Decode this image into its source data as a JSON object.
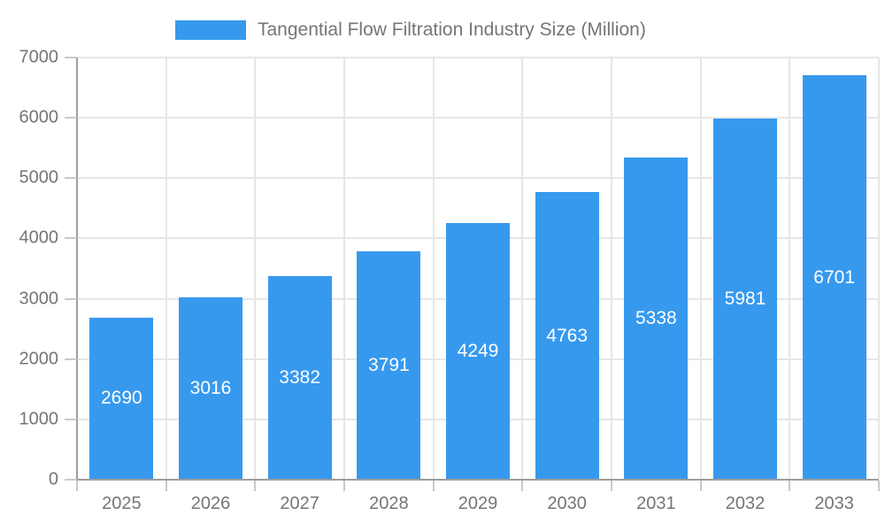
{
  "legend": {
    "label": "Tangential Flow Filtration Industry Size (Million)"
  },
  "chart_data": {
    "type": "bar",
    "title": "Tangential Flow Filtration Industry Size (Million)",
    "categories": [
      "2025",
      "2026",
      "2027",
      "2028",
      "2029",
      "2030",
      "2031",
      "2032",
      "2033"
    ],
    "series": [
      {
        "name": "Tangential Flow Filtration Industry Size (Million)",
        "values": [
          2690,
          3016,
          3382,
          3791,
          4249,
          4763,
          5338,
          5981,
          6701
        ]
      }
    ],
    "value_labels_shown": true,
    "xlabel": "",
    "ylabel": "",
    "ylim": [
      0,
      7000
    ],
    "ytick_step": 1000,
    "yticks": [
      "0",
      "1000",
      "2000",
      "3000",
      "4000",
      "5000",
      "6000",
      "7000"
    ],
    "grid": "on",
    "legend_position": "top",
    "colors": {
      "bar": "#3799ee",
      "value_label_text": "#ffffff",
      "axis_text": "#757575",
      "axis_line": "#9e9e9e",
      "gridline": "#e6e6e6"
    }
  }
}
